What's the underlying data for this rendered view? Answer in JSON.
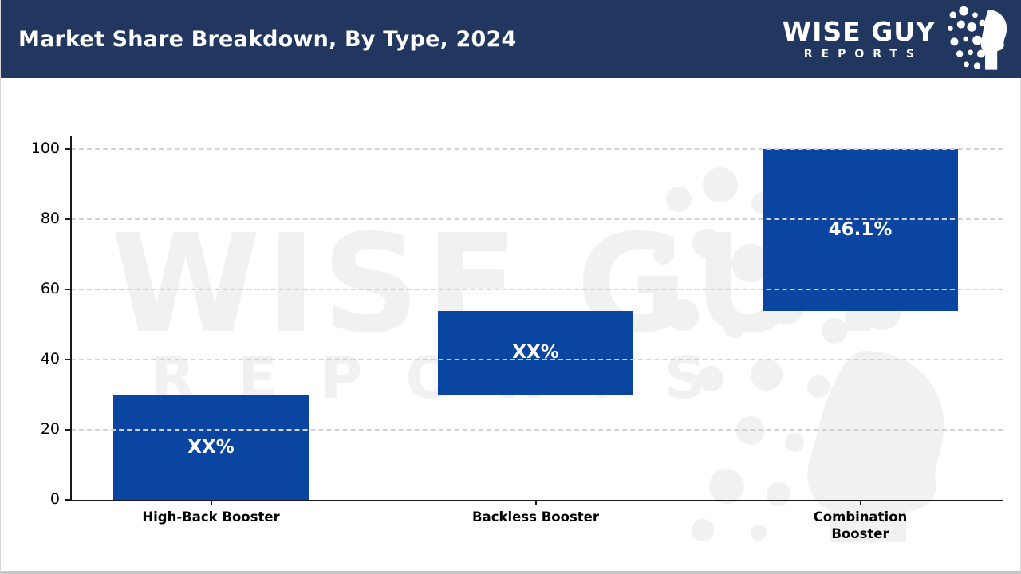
{
  "header": {
    "title": "Market Share Breakdown, By Type, 2024",
    "bg_color": "#22375f",
    "logo": {
      "line1": "WISE GUY",
      "line2": "REPORTS"
    }
  },
  "watermark": {
    "line1": "WISE GUY",
    "line2": "REPORTS"
  },
  "chart_data": {
    "type": "bar",
    "subtype": "floating-waterfall",
    "title": "Market Share Breakdown, By Type, 2024",
    "categories": [
      "High-Back Booster",
      "Backless Booster",
      "Combination Booster"
    ],
    "bars": [
      {
        "category": "High-Back Booster",
        "from": 0,
        "to": 30,
        "label": "XX%"
      },
      {
        "category": "Backless Booster",
        "from": 30,
        "to": 53.9,
        "label": "XX%"
      },
      {
        "category": "Combination Booster",
        "from": 53.9,
        "to": 100,
        "label": "46.1%"
      }
    ],
    "xlabel": "",
    "ylabel": "",
    "ylim": [
      0,
      100
    ],
    "yticks": [
      0,
      20,
      40,
      60,
      80,
      100
    ],
    "grid": "horizontal-dashed",
    "legend": false,
    "bar_color": "#0a45a1",
    "bar_label_color": "#ffffff",
    "grid_color": "#d2d2d2",
    "axis_color": "#1a1a1a",
    "watermark_color": "#f1f1f1"
  }
}
